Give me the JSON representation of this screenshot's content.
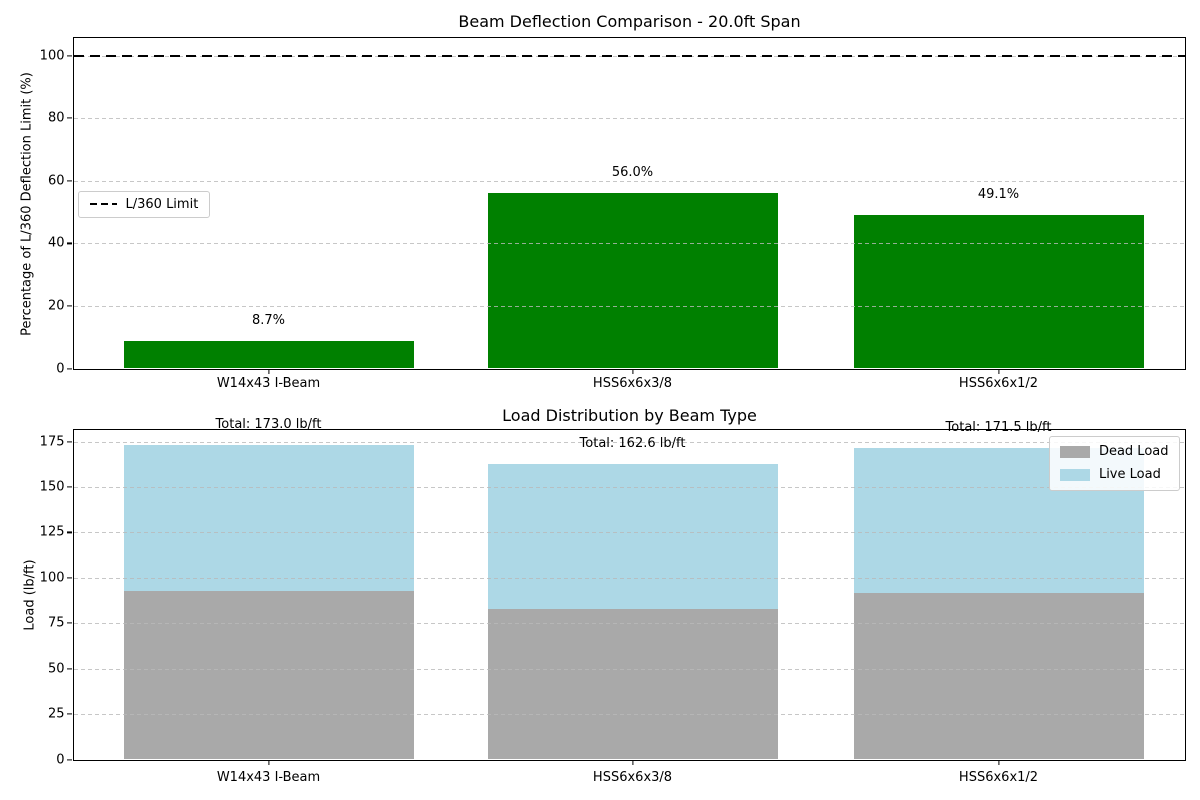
{
  "chart_data": [
    {
      "type": "bar",
      "title": "Beam Deflection Comparison - 20.0ft Span",
      "ylabel": "Percentage of L/360 Deflection Limit (%)",
      "xlabel": "",
      "categories": [
        "W14x43 I-Beam",
        "HSS6x6x3/8",
        "HSS6x6x1/2"
      ],
      "values": [
        8.7,
        56.0,
        49.1
      ],
      "value_labels": [
        "8.7%",
        "56.0%",
        "49.1%"
      ],
      "bar_color": "#008000",
      "ylim": [
        0,
        105.8
      ],
      "yticks": [
        0,
        20,
        40,
        60,
        80,
        100
      ],
      "grid": "dashed-horizontal",
      "limit_line": {
        "value": 100,
        "style": "dashed",
        "color": "#000000",
        "label": "L/360 Limit"
      },
      "legend": {
        "position": "center-left",
        "entries": [
          "L/360 Limit"
        ]
      }
    },
    {
      "type": "stacked-bar",
      "title": "Load Distribution by Beam Type",
      "ylabel": "Load (lb/ft)",
      "xlabel": "",
      "categories": [
        "W14x43 I-Beam",
        "HSS6x6x3/8",
        "HSS6x6x1/2"
      ],
      "series": [
        {
          "name": "Dead Load",
          "color": "#a9a9a9",
          "values": [
            93.0,
            82.6,
            91.5
          ]
        },
        {
          "name": "Live Load",
          "color": "#add8e6",
          "values": [
            80.0,
            80.0,
            80.0
          ]
        }
      ],
      "stack_totals": [
        173.0,
        162.6,
        171.5
      ],
      "total_labels": [
        "Total: 173.0 lb/ft",
        "Total: 162.6 lb/ft",
        "Total: 171.5 lb/ft"
      ],
      "ylim": [
        0,
        181.7
      ],
      "yticks": [
        0,
        25,
        50,
        75,
        100,
        125,
        150,
        175
      ],
      "grid": "dashed-horizontal",
      "legend": {
        "position": "upper-right",
        "entries": [
          "Dead Load",
          "Live Load"
        ]
      }
    }
  ]
}
